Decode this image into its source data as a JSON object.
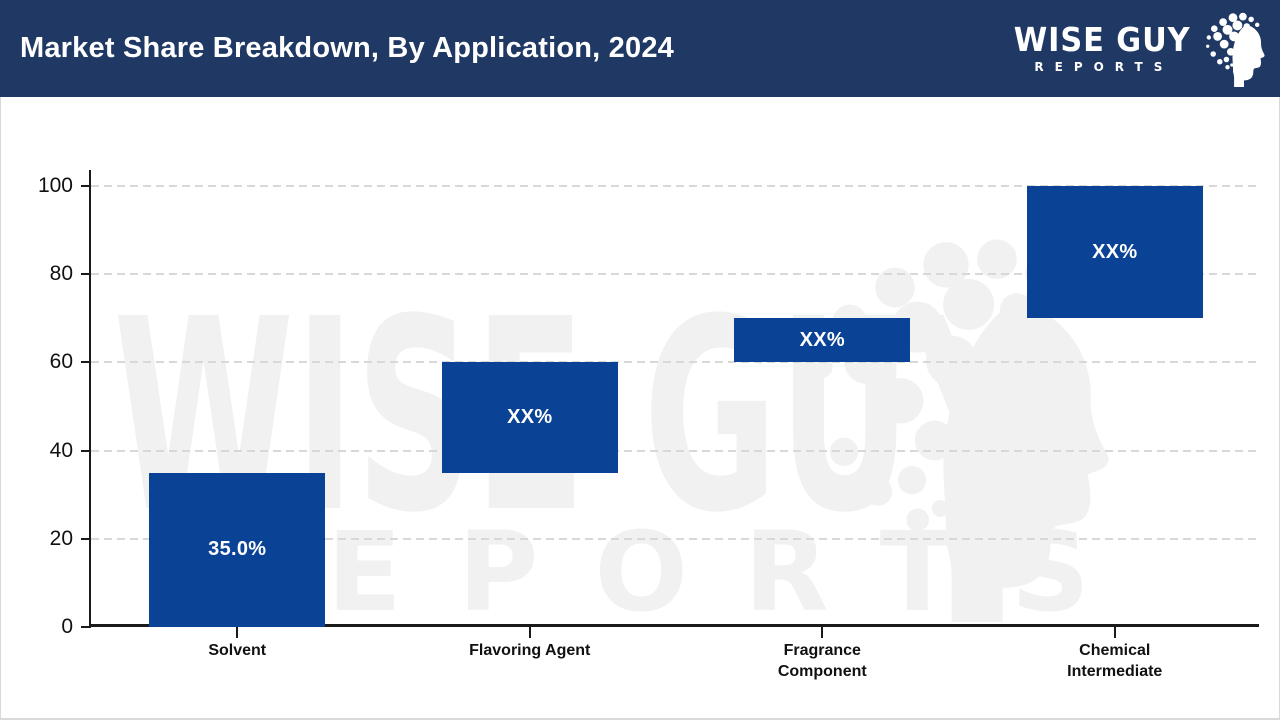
{
  "header": {
    "title": "Market Share Breakdown, By Application, 2024",
    "logo": {
      "name": "WISE GUY",
      "tagline": "REPORTS"
    }
  },
  "watermark": {
    "line1": "WISE GUY",
    "line2": "REPORTS"
  },
  "chart_data": {
    "type": "bar",
    "subtype": "waterfall",
    "title": "Market Share Breakdown, By Application, 2024",
    "categories": [
      "Solvent",
      "Flavoring Agent",
      "Fragrance\nComponent",
      "Chemical\nIntermediate"
    ],
    "segments": [
      {
        "category": "Solvent",
        "start": 0,
        "end": 35,
        "label": "35.0%"
      },
      {
        "category": "Flavoring Agent",
        "start": 35,
        "end": 60,
        "label": "XX%"
      },
      {
        "category": "Fragrance Component",
        "start": 60,
        "end": 70,
        "label": "XX%"
      },
      {
        "category": "Chemical Intermediate",
        "start": 70,
        "end": 100,
        "label": "XX%"
      }
    ],
    "xlabel": "",
    "ylabel": "",
    "ylim": [
      0,
      100
    ],
    "yticks": [
      0,
      20,
      40,
      60,
      80,
      100
    ],
    "grid": "horizontal-dashed",
    "legend": "none",
    "colors": {
      "bar": "#0a4296",
      "bar_label": "#ffffff",
      "grid": "#d8d8d8",
      "axis": "#1a1a1a",
      "tick_text": "#111111"
    }
  },
  "theme": {
    "header_bg": "#1f3864",
    "header_text": "#ffffff",
    "canvas_bg": "#ffffff",
    "watermark": "#f1f1f1",
    "border": "#d9d9d9"
  }
}
